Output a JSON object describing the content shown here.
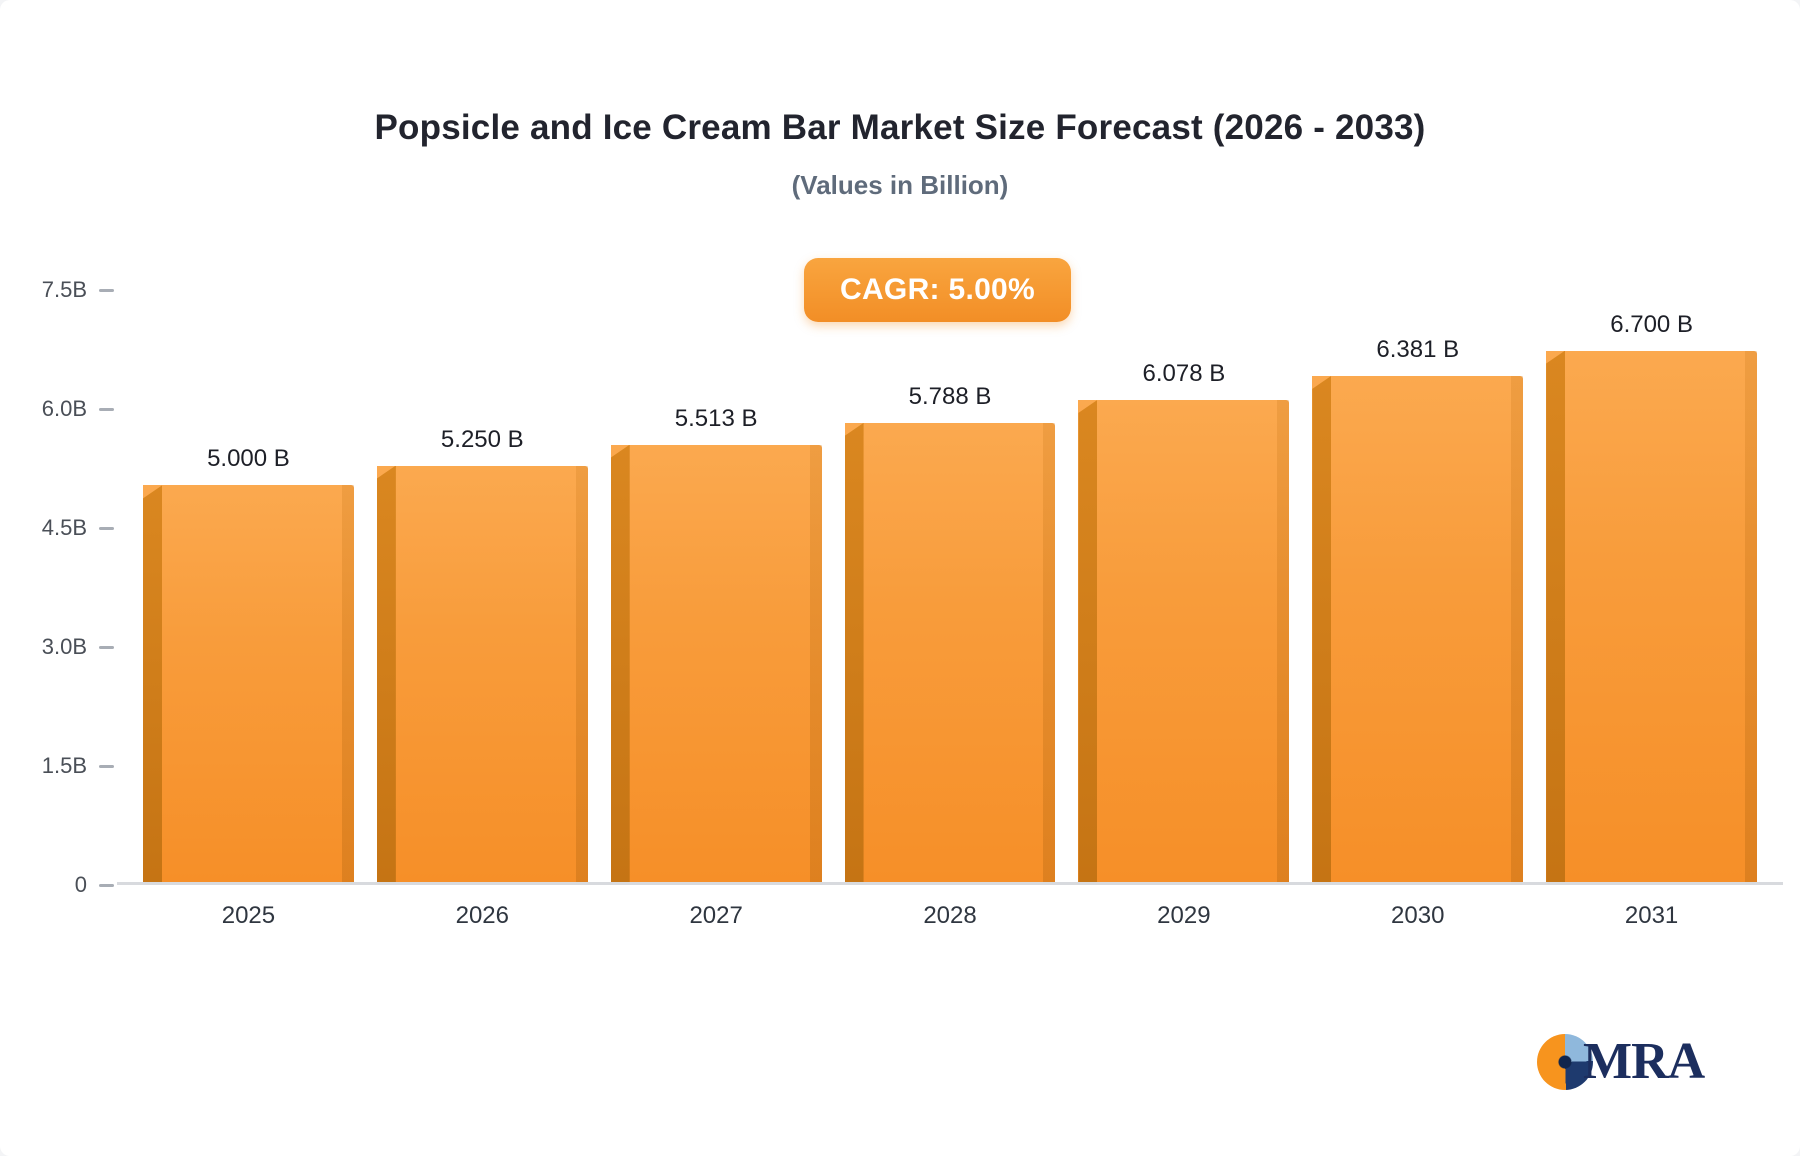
{
  "page": {
    "cagr_badge": "CAGR: 5.00%"
  },
  "chart_data": {
    "type": "bar",
    "title": "Popsicle and Ice Cream Bar Market Size Forecast (2026 - 2033)",
    "subtitle": "(Values in Billion)",
    "cagr": "5.00%",
    "categories": [
      "2025",
      "2026",
      "2027",
      "2028",
      "2029",
      "2030",
      "2031"
    ],
    "values": [
      5.0,
      5.25,
      5.513,
      5.788,
      6.078,
      6.381,
      6.7
    ],
    "value_labels": [
      "5.000 B",
      "5.250 B",
      "5.513 B",
      "5.788 B",
      "6.078 B",
      "6.381 B",
      "6.700 B"
    ],
    "unit": "Billion",
    "xlabel": "",
    "ylabel": "",
    "ylim": [
      0,
      7.5
    ],
    "yticks": [
      0,
      1.5,
      3.0,
      4.5,
      6.0,
      7.5
    ],
    "ytick_labels": [
      "0",
      "1.5B",
      "3.0B",
      "4.5B",
      "6.0B",
      "7.5B"
    ],
    "grid": false,
    "legend": "none",
    "bar_color": "#F7941E",
    "bar_color_light": "#FBA94F",
    "bar_side_color": "#C57414"
  },
  "logo": {
    "text": "MRA",
    "colors": {
      "orange": "#F7941E",
      "light_blue": "#8FB8DC",
      "navy": "#1E3A6E"
    }
  }
}
